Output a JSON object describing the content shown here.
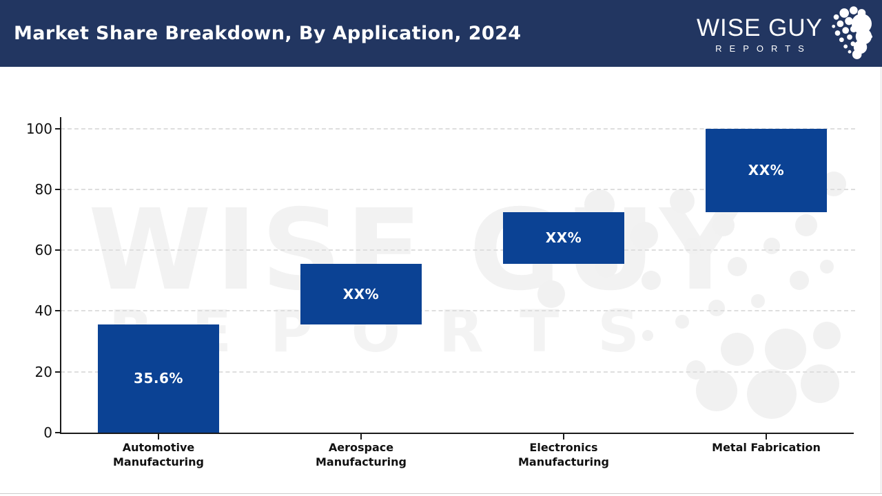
{
  "header": {
    "title": "Market Share Breakdown, By Application, 2024",
    "logo": {
      "line1": "WISE GUY",
      "line2": "REPORTS"
    }
  },
  "watermark": {
    "line1": "WISE GUY",
    "line2": "REPORTS"
  },
  "chart_data": {
    "type": "bar",
    "variant": "waterfall-floating-bars",
    "title": "Market Share Breakdown, By Application, 2024",
    "categories": [
      "Automotive Manufacturing",
      "Aerospace Manufacturing",
      "Electronics Manufacturing",
      "Metal Fabrication"
    ],
    "bars": [
      {
        "category": "Automotive Manufacturing",
        "start": 0,
        "end": 35.6,
        "value": 35.6,
        "label": "35.6%"
      },
      {
        "category": "Aerospace Manufacturing",
        "start": 35.6,
        "end": 55.6,
        "value": 20.0,
        "label": "XX%"
      },
      {
        "category": "Electronics Manufacturing",
        "start": 55.6,
        "end": 72.5,
        "value": 16.9,
        "label": "XX%"
      },
      {
        "category": "Metal Fabrication",
        "start": 72.5,
        "end": 100,
        "value": 27.5,
        "label": "XX%"
      }
    ],
    "xlabel": "",
    "ylabel": "",
    "ylim": [
      0,
      100
    ],
    "yticks": [
      0,
      20,
      40,
      60,
      80,
      100
    ],
    "grid": "horizontal-dashed",
    "legend": "none",
    "bar_color": "#0b4294",
    "bar_label_color": "#ffffff",
    "axis_color": "#1a1a1a",
    "grid_color": "#dedede"
  },
  "colors": {
    "header_bg": "#223661",
    "header_text": "#ffffff",
    "bar": "#0b4294",
    "watermark": "#f2f2f2",
    "background": "#ffffff"
  }
}
